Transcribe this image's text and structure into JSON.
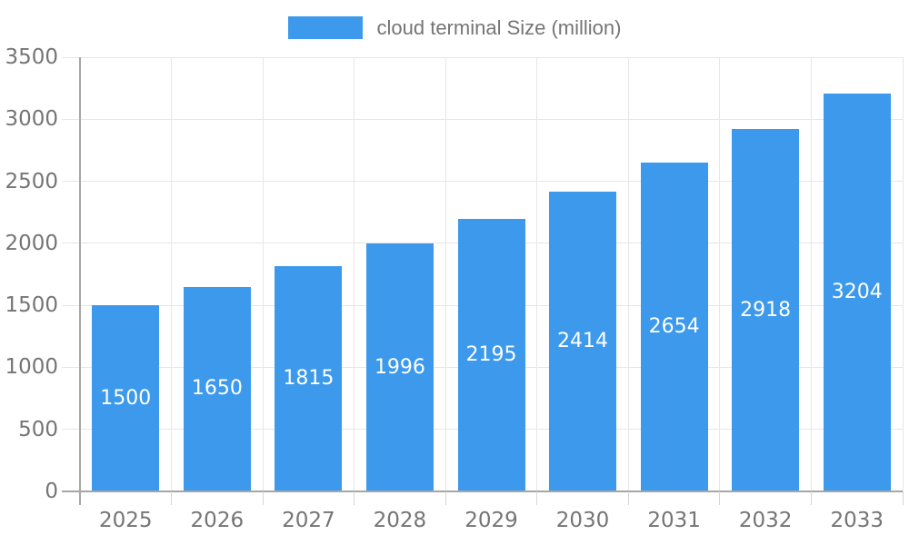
{
  "legend": {
    "label": "cloud terminal Size (million)"
  },
  "chart_data": {
    "type": "bar",
    "title": "",
    "xlabel": "",
    "ylabel": "",
    "categories": [
      "2025",
      "2026",
      "2027",
      "2028",
      "2029",
      "2030",
      "2031",
      "2032",
      "2033"
    ],
    "series": [
      {
        "name": "cloud terminal Size (million)",
        "values": [
          1500,
          1650,
          1815,
          1996,
          2195,
          2414,
          2654,
          2918,
          3204
        ]
      }
    ],
    "value_labels_shown": true,
    "ylim": [
      0,
      3500
    ],
    "yticks": [
      0,
      500,
      1000,
      1500,
      2000,
      2500,
      3000,
      3500
    ],
    "grid": true,
    "legend_position": "top-center",
    "bar_color": "#3C99EB",
    "value_label_color": "#FFFFFF",
    "axis_text_color": "#757575",
    "gridline_color": "#E6E6E6",
    "tick_color": "#D6D6D6",
    "axis_line_color": "#A6A6A6",
    "background_color": "#FFFFFF"
  }
}
